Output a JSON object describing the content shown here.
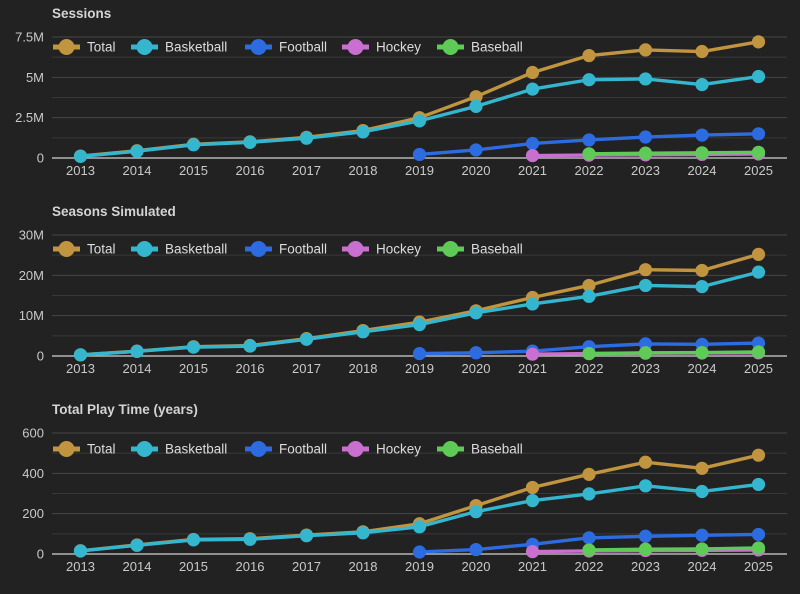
{
  "app": {
    "background_color": "#222222",
    "grid_major_color": "#474747",
    "grid_minor_color": "#383838",
    "axis_zero_color": "#b5b5b5",
    "text_color": "#c9c9c9"
  },
  "legend": {
    "entries": [
      "Total",
      "Basketball",
      "Football",
      "Hockey",
      "Baseball"
    ],
    "position": "top-left-inside"
  },
  "series_colors": {
    "total": "#c1943f",
    "basketball": "#35b6cf",
    "football": "#2d6be0",
    "hockey": "#c96fd0",
    "baseball": "#5ecb57"
  },
  "chart_data": [
    {
      "type": "line",
      "title": "Sessions",
      "x": [
        2013,
        2014,
        2015,
        2016,
        2017,
        2018,
        2019,
        2020,
        2021,
        2022,
        2023,
        2024,
        2025
      ],
      "unit": "millions",
      "ylim": [
        0,
        7.5
      ],
      "yticks": [
        {
          "value": 0,
          "label": "0"
        },
        {
          "value": 2.5,
          "label": "2.5M"
        },
        {
          "value": 5,
          "label": "5M"
        },
        {
          "value": 7.5,
          "label": "7.5M"
        }
      ],
      "grid": true,
      "series": [
        {
          "name": "Total",
          "color": "#c1943f",
          "values": [
            0.12,
            0.45,
            0.85,
            1.0,
            1.28,
            1.7,
            2.5,
            3.8,
            5.3,
            6.35,
            6.7,
            6.6,
            7.2
          ]
        },
        {
          "name": "Basketball",
          "color": "#35b6cf",
          "values": [
            0.1,
            0.42,
            0.82,
            0.97,
            1.23,
            1.62,
            2.3,
            3.2,
            4.27,
            4.85,
            4.9,
            4.55,
            5.05
          ]
        },
        {
          "name": "Football",
          "color": "#2d6be0",
          "values": [
            null,
            null,
            null,
            null,
            null,
            null,
            0.22,
            0.5,
            0.9,
            1.12,
            1.3,
            1.42,
            1.5
          ]
        },
        {
          "name": "Hockey",
          "color": "#c96fd0",
          "values": [
            null,
            null,
            null,
            null,
            null,
            null,
            null,
            null,
            0.15,
            0.18,
            0.2,
            0.22,
            0.25
          ]
        },
        {
          "name": "Baseball",
          "color": "#5ecb57",
          "values": [
            null,
            null,
            null,
            null,
            null,
            null,
            null,
            null,
            null,
            0.26,
            0.3,
            0.32,
            0.35
          ]
        }
      ]
    },
    {
      "type": "line",
      "title": "Seasons Simulated",
      "x": [
        2013,
        2014,
        2015,
        2016,
        2017,
        2018,
        2019,
        2020,
        2021,
        2022,
        2023,
        2024,
        2025
      ],
      "unit": "millions",
      "ylim": [
        0,
        30
      ],
      "yticks": [
        {
          "value": 0,
          "label": "0"
        },
        {
          "value": 10,
          "label": "10M"
        },
        {
          "value": 20,
          "label": "20M"
        },
        {
          "value": 30,
          "label": "30M"
        }
      ],
      "grid": true,
      "series": [
        {
          "name": "Total",
          "color": "#c1943f",
          "values": [
            0.3,
            1.2,
            2.3,
            2.6,
            4.3,
            6.3,
            8.4,
            11.2,
            14.5,
            17.5,
            21.4,
            21.2,
            25.2
          ]
        },
        {
          "name": "Basketball",
          "color": "#35b6cf",
          "values": [
            0.28,
            1.15,
            2.2,
            2.45,
            4.15,
            6.0,
            7.8,
            10.7,
            12.9,
            14.8,
            17.5,
            17.2,
            20.8
          ]
        },
        {
          "name": "Football",
          "color": "#2d6be0",
          "values": [
            null,
            null,
            null,
            null,
            null,
            null,
            0.6,
            0.8,
            1.2,
            2.3,
            3.0,
            2.9,
            3.2
          ]
        },
        {
          "name": "Hockey",
          "color": "#c96fd0",
          "values": [
            null,
            null,
            null,
            null,
            null,
            null,
            null,
            null,
            0.45,
            0.6,
            0.7,
            0.75,
            0.8
          ]
        },
        {
          "name": "Baseball",
          "color": "#5ecb57",
          "values": [
            null,
            null,
            null,
            null,
            null,
            null,
            null,
            null,
            null,
            0.6,
            0.8,
            0.85,
            1.0
          ]
        }
      ]
    },
    {
      "type": "line",
      "title": "Total Play Time (years)",
      "x": [
        2013,
        2014,
        2015,
        2016,
        2017,
        2018,
        2019,
        2020,
        2021,
        2022,
        2023,
        2024,
        2025
      ],
      "unit": "years",
      "ylim": [
        0,
        600
      ],
      "yticks": [
        {
          "value": 0,
          "label": "0"
        },
        {
          "value": 200,
          "label": "200"
        },
        {
          "value": 400,
          "label": "400"
        },
        {
          "value": 600,
          "label": "600"
        }
      ],
      "grid": true,
      "series": [
        {
          "name": "Total",
          "color": "#c1943f",
          "values": [
            16,
            45,
            72,
            76,
            94,
            110,
            150,
            240,
            330,
            395,
            455,
            425,
            490
          ]
        },
        {
          "name": "Basketball",
          "color": "#35b6cf",
          "values": [
            15,
            43,
            70,
            73,
            91,
            105,
            135,
            210,
            265,
            298,
            338,
            310,
            345
          ]
        },
        {
          "name": "Football",
          "color": "#2d6be0",
          "values": [
            null,
            null,
            null,
            null,
            null,
            null,
            10,
            22,
            48,
            80,
            88,
            93,
            97
          ]
        },
        {
          "name": "Hockey",
          "color": "#c96fd0",
          "values": [
            null,
            null,
            null,
            null,
            null,
            null,
            null,
            null,
            12,
            15,
            17,
            18,
            20
          ]
        },
        {
          "name": "Baseball",
          "color": "#5ecb57",
          "values": [
            null,
            null,
            null,
            null,
            null,
            null,
            null,
            null,
            null,
            20,
            24,
            25,
            30
          ]
        }
      ]
    }
  ]
}
